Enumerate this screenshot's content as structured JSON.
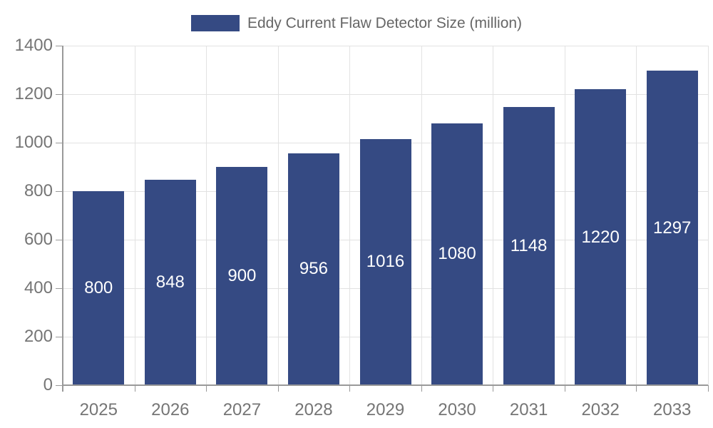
{
  "legend": {
    "label": "Eddy Current Flaw Detector Size (million)"
  },
  "colors": {
    "bar": "#354a83",
    "grid": "#e2e2e2",
    "axis_line": "#999999",
    "axis_text": "#757575",
    "value_label_text": "#ffffff",
    "legend_text": "#666666",
    "background": "#ffffff"
  },
  "chart_data": {
    "type": "bar",
    "title": "Eddy Current Flaw Detector Size (million)",
    "categories": [
      "2025",
      "2026",
      "2027",
      "2028",
      "2029",
      "2030",
      "2031",
      "2032",
      "2033"
    ],
    "values": [
      800,
      848,
      900,
      956,
      1016,
      1080,
      1148,
      1220,
      1297
    ],
    "xlabel": "",
    "ylabel": "",
    "ylim": [
      0,
      1400
    ],
    "ytick_step": 200,
    "yticks": [
      0,
      200,
      400,
      600,
      800,
      1000,
      1200,
      1400
    ],
    "grid": true,
    "legend_position": "top",
    "value_labels": "inside-center"
  }
}
